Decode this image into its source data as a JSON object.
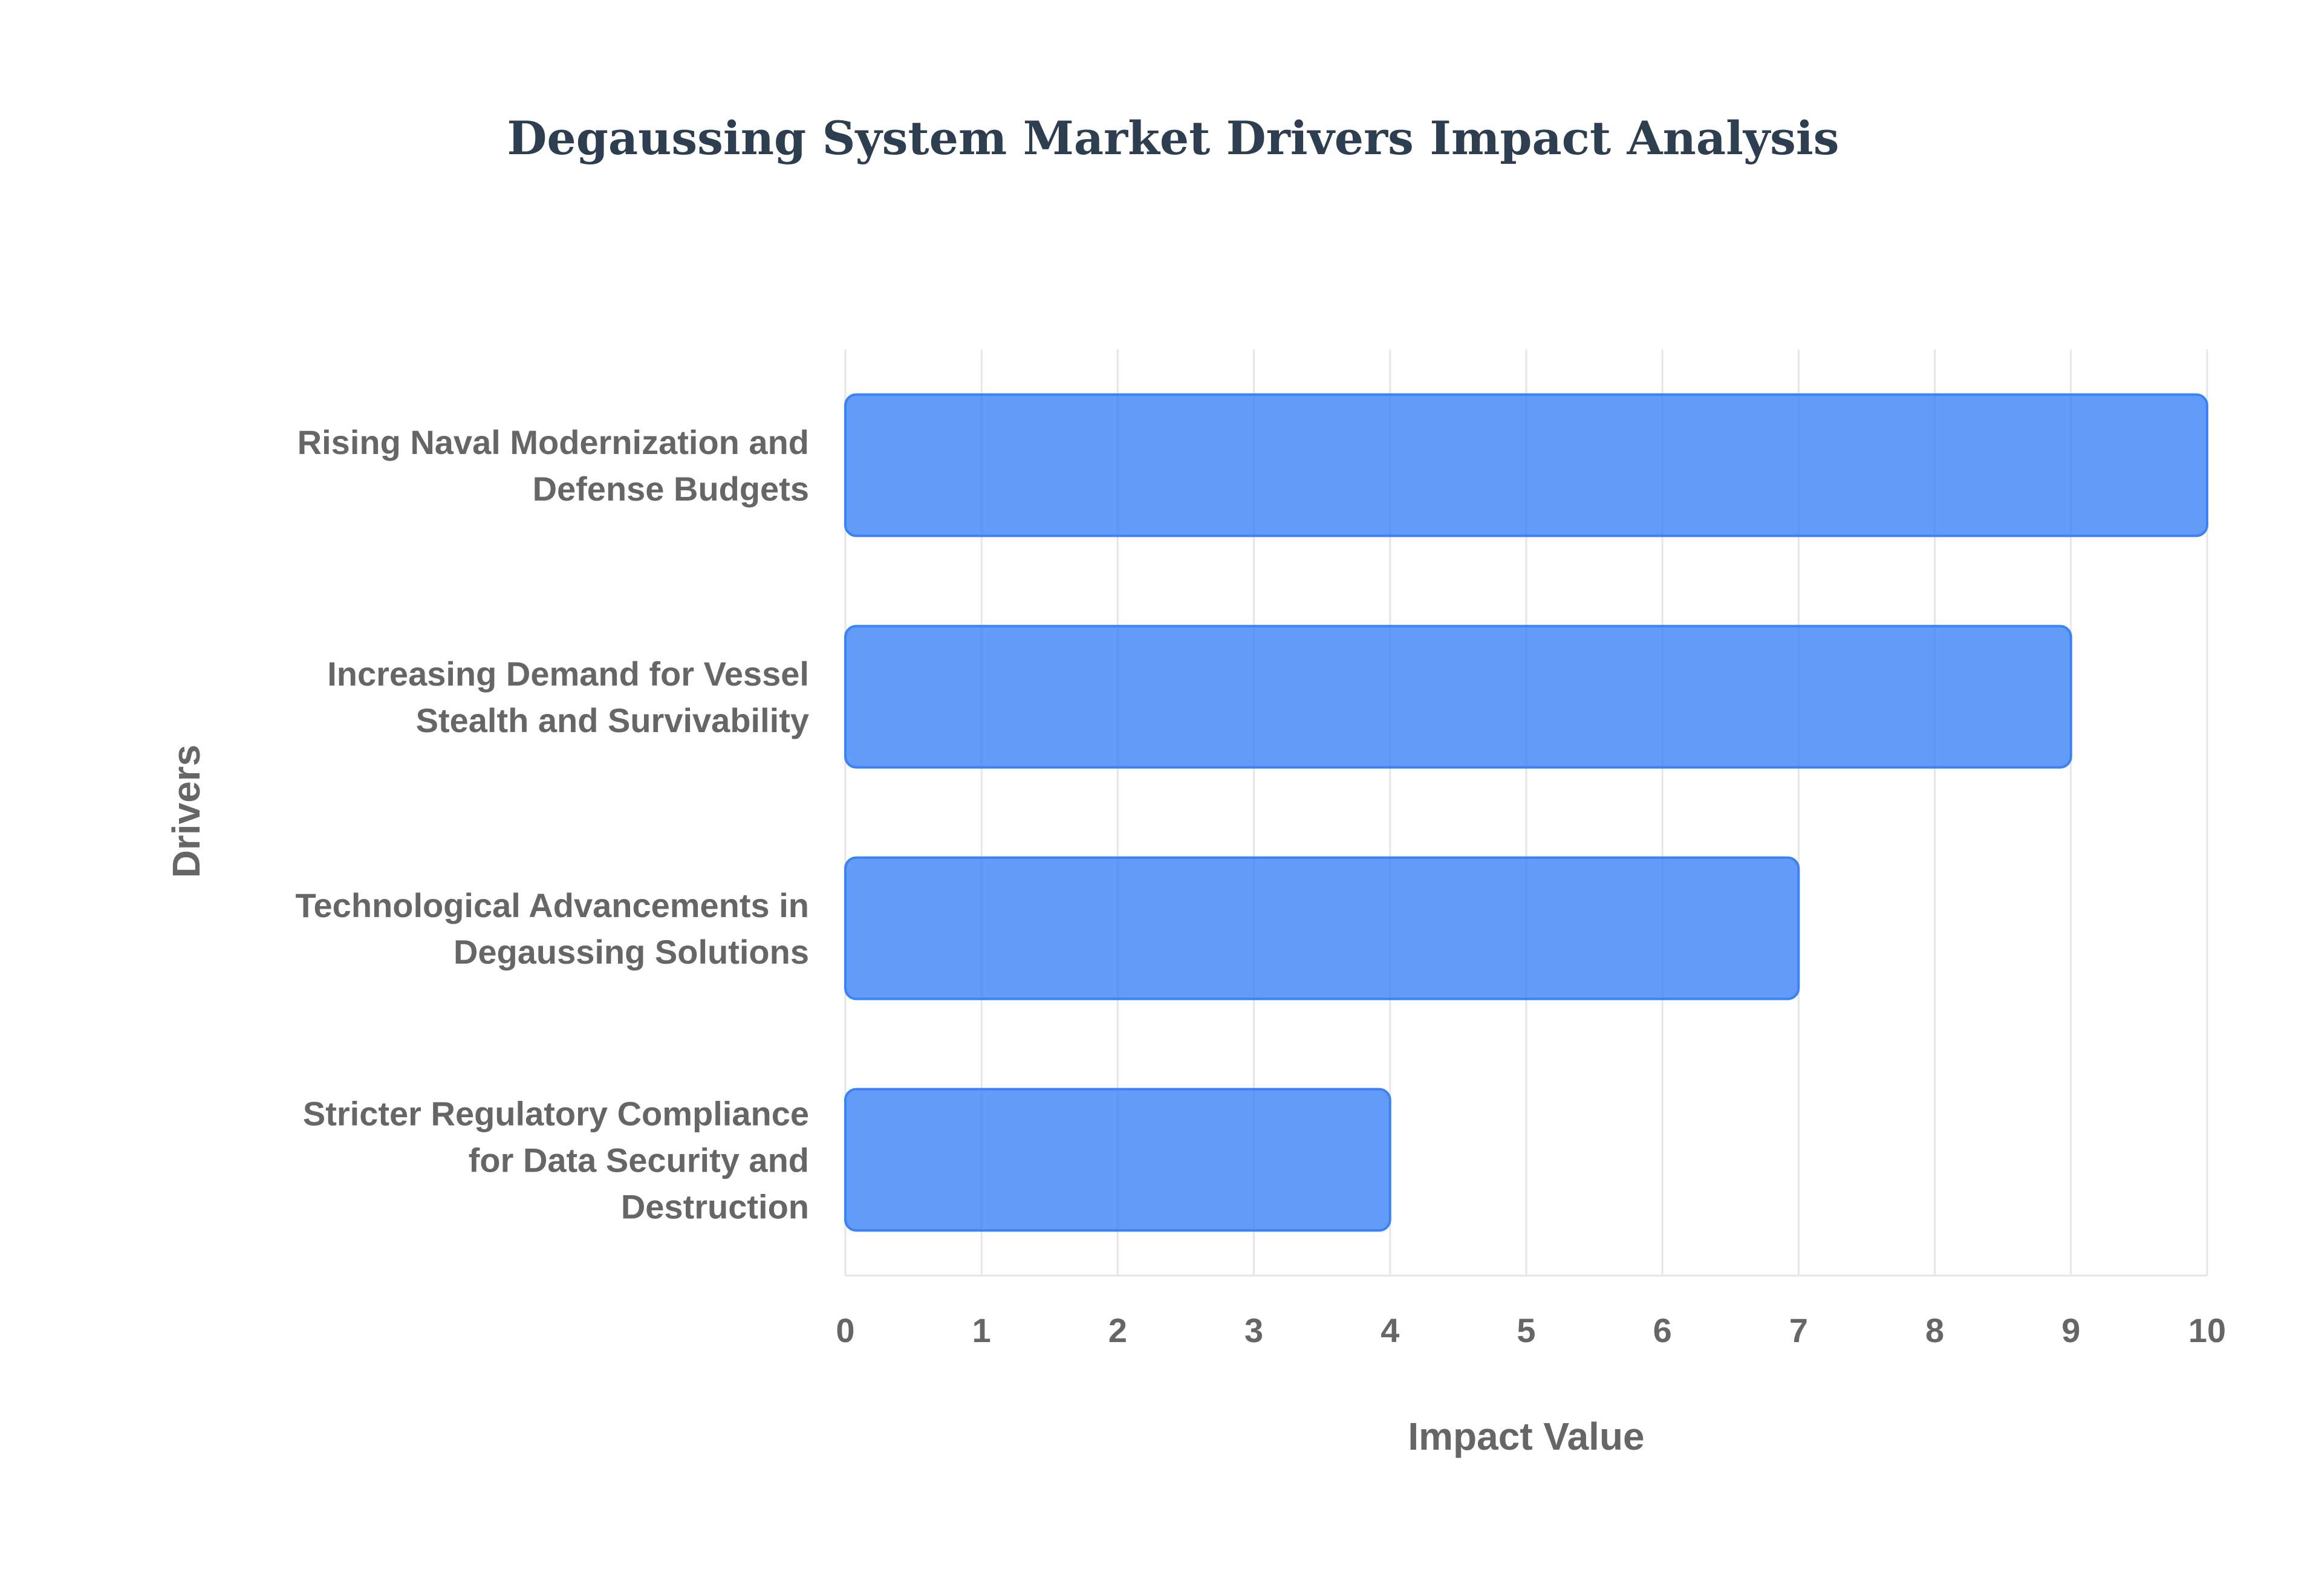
{
  "chart_data": {
    "type": "bar",
    "orientation": "horizontal",
    "title": "Degaussing System Market Drivers Impact Analysis",
    "xlabel": "Impact Value",
    "ylabel": "Drivers",
    "categories": [
      [
        "Rising Naval Modernization and",
        "Defense Budgets"
      ],
      [
        "Increasing Demand for Vessel",
        "Stealth and Survivability"
      ],
      [
        "Technological Advancements in",
        "Degaussing Solutions"
      ],
      [
        "Stricter Regulatory Compliance",
        "for Data Security and",
        "Destruction"
      ]
    ],
    "values": [
      10,
      9,
      7,
      4
    ],
    "xlim": [
      0,
      10
    ],
    "xticks": [
      "0",
      "1",
      "2",
      "3",
      "4",
      "5",
      "6",
      "7",
      "8",
      "9",
      "10"
    ],
    "grid": true,
    "legend": "none",
    "colors": {
      "bar_fill": "#3b82f6",
      "title": "#2c3e50",
      "text": "#666666",
      "grid": "#e6e6e6"
    }
  }
}
